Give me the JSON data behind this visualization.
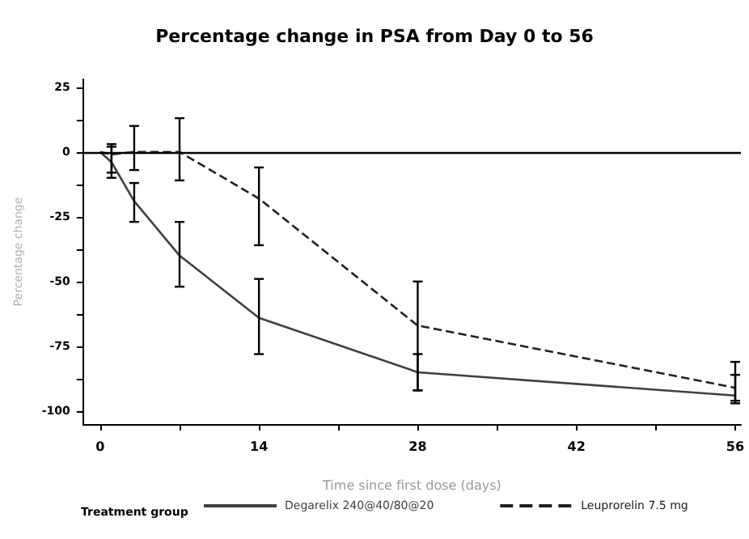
{
  "chart_data": {
    "type": "line",
    "title": "Percentage change in PSA from Day 0 to 56",
    "xlabel": "Time since first dose (days)",
    "ylabel": "Percentage change",
    "legend_title": "Treatment group",
    "x": [
      0,
      1,
      3,
      7,
      14,
      28,
      56
    ],
    "series": [
      {
        "name": "Degarelix 240@40/80@20",
        "color": "#404040",
        "line_style": "solid",
        "values": [
          0,
          -4,
          -19,
          -40,
          -64,
          -85,
          -94
        ],
        "errors": [
          null,
          [
            -10,
            3
          ],
          [
            -27,
            -12
          ],
          [
            -52,
            -27
          ],
          [
            -78,
            -49
          ],
          [
            -92,
            -78
          ],
          [
            -97,
            -86
          ]
        ]
      },
      {
        "name": "Leuprorelin 7.5 mg",
        "color": "#202020",
        "line_style": "dashed",
        "values": [
          0,
          -1,
          0,
          0,
          -18,
          -67,
          -91
        ],
        "errors": [
          null,
          [
            -8,
            2
          ],
          [
            -7,
            10
          ],
          [
            -11,
            13
          ],
          [
            -36,
            -6
          ],
          [
            -92,
            -50
          ],
          [
            -96,
            -81
          ]
        ]
      }
    ],
    "xlim": [
      -1.5,
      56.5
    ],
    "xticks": [
      0,
      {
        "value": 7,
        "label": null
      },
      14,
      {
        "value": 21,
        "label": null
      },
      28,
      {
        "value": 35,
        "label": null
      },
      42,
      {
        "value": 49,
        "label": null
      },
      56
    ],
    "ylim": [
      -105,
      28
    ],
    "yticks": [
      -100,
      {
        "value": -87.5,
        "label": null
      },
      -75,
      {
        "value": -62.5,
        "label": null
      },
      -50,
      {
        "value": -37.5,
        "label": null
      },
      -25,
      {
        "value": -12.5,
        "label": null
      },
      0,
      {
        "value": 12.5,
        "label": null
      },
      25
    ],
    "ref_lines": [
      {
        "axis": "y",
        "value": 0,
        "color": "#000000",
        "line_style": "solid"
      }
    ],
    "grid": false,
    "legend": "bottom",
    "marker": "none"
  }
}
